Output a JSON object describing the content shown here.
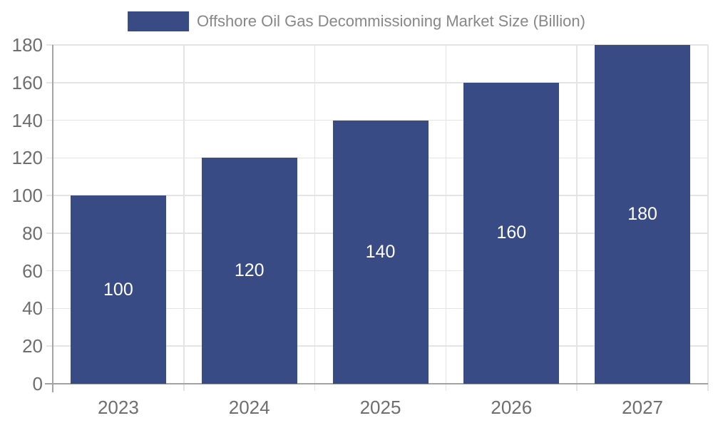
{
  "legend": {
    "label": "Offshore Oil Gas Decommissioning Market Size (Billion)"
  },
  "chart_data": {
    "type": "bar",
    "title": "Offshore Oil Gas Decommissioning Market Size (Billion)",
    "categories": [
      "2023",
      "2024",
      "2025",
      "2026",
      "2027"
    ],
    "values": [
      100,
      120,
      140,
      160,
      180
    ],
    "value_labels": [
      "100",
      "120",
      "140",
      "160",
      "180"
    ],
    "xlabel": "",
    "ylabel": "",
    "ylim": [
      0,
      180
    ],
    "yticks": [
      0,
      20,
      40,
      60,
      80,
      100,
      120,
      140,
      160,
      180
    ],
    "grid": true,
    "legend_position": "top"
  },
  "colors": {
    "bar": "#384B84",
    "value_label": "#ffffff",
    "grid": "#e4e4e4",
    "axis": "#a3a3a3",
    "tick_label": "#6e6e6e",
    "legend_text": "#878787"
  }
}
